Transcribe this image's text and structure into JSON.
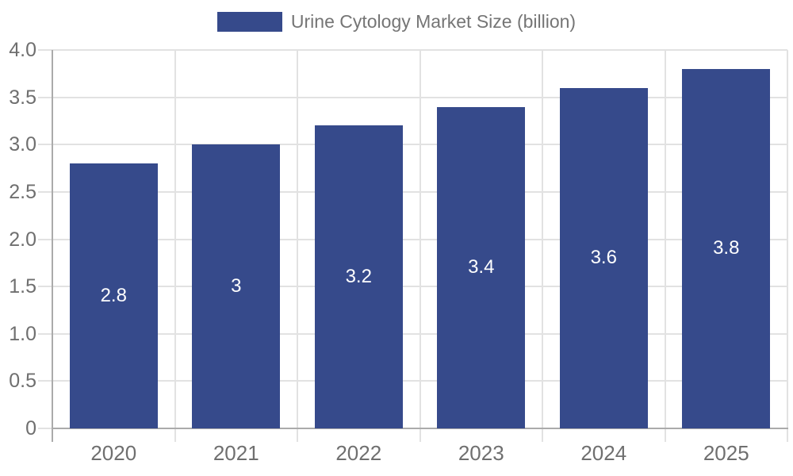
{
  "chart_data": {
    "type": "bar",
    "title": "",
    "legend": "Urine Cytology Market Size (billion)",
    "legend_position": "top-center",
    "categories": [
      "2020",
      "2021",
      "2022",
      "2023",
      "2024",
      "2025"
    ],
    "values": [
      2.8,
      3.0,
      3.2,
      3.4,
      3.6,
      3.8
    ],
    "value_labels": [
      "2.8",
      "3",
      "3.2",
      "3.4",
      "3.6",
      "3.8"
    ],
    "xlabel": "",
    "ylabel": "",
    "ylim": [
      0,
      4
    ],
    "yticks": [
      {
        "value": 0,
        "label": "0"
      },
      {
        "value": 0.5,
        "label": "0.5"
      },
      {
        "value": 1,
        "label": "1.0"
      },
      {
        "value": 1.5,
        "label": "1.5"
      },
      {
        "value": 2,
        "label": "2.0"
      },
      {
        "value": 2.5,
        "label": "2.5"
      },
      {
        "value": 3,
        "label": "3.0"
      },
      {
        "value": 3.5,
        "label": "3.5"
      },
      {
        "value": 4,
        "label": "4.0"
      }
    ],
    "grid": true,
    "colors": {
      "bar": "#364A8B",
      "grid": "#E2E2E2",
      "axis": "#ABABAB",
      "tick_text": "#6F6F6F",
      "legend_text": "#757575",
      "bar_label": "#FFFFFF",
      "background": "#FFFFFF"
    }
  }
}
